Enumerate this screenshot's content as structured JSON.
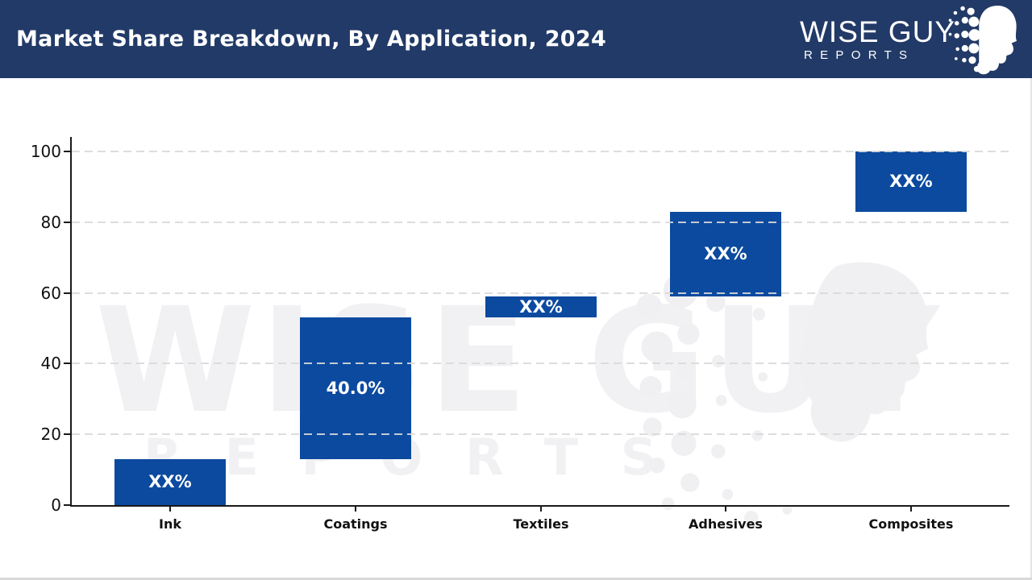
{
  "header": {
    "title": "Market Share Breakdown, By Application, 2024",
    "logo": {
      "line1": "WISE GUY",
      "line2": "REPORTS"
    }
  },
  "watermark": {
    "line1": "WISE GUY",
    "line2": "REPORTS"
  },
  "chart_data": {
    "type": "bar",
    "subtype": "waterfall",
    "title": "Market Share Breakdown, By Application, 2024",
    "categories": [
      "Ink",
      "Coatings",
      "Textiles",
      "Adhesives",
      "Composites"
    ],
    "segments": [
      {
        "category": "Ink",
        "start": 0,
        "end": 13,
        "label": "XX%",
        "span_estimate": 13
      },
      {
        "category": "Coatings",
        "start": 13,
        "end": 53,
        "label": "40.0%",
        "span_estimate": 40.0
      },
      {
        "category": "Textiles",
        "start": 53,
        "end": 59,
        "label": "XX%",
        "span_estimate": 6
      },
      {
        "category": "Adhesives",
        "start": 59,
        "end": 83,
        "label": "XX%",
        "span_estimate": 24
      },
      {
        "category": "Composites",
        "start": 83,
        "end": 100,
        "label": "XX%",
        "span_estimate": 17
      }
    ],
    "yticks": [
      0,
      20,
      40,
      60,
      80,
      100
    ],
    "ylim": [
      0,
      100
    ],
    "xlabel": "",
    "ylabel": "",
    "grid": "horizontal dashed, drawn above bars",
    "legend": "none",
    "bar_color": "#0b4a9f",
    "bar_label_color": "#ffffff"
  },
  "colors": {
    "header_bg": "#223a67",
    "bar": "#0b4a9f",
    "grid": "#d9d9d9",
    "axis": "#1a1a1a",
    "watermark": "#f1f1f4"
  }
}
